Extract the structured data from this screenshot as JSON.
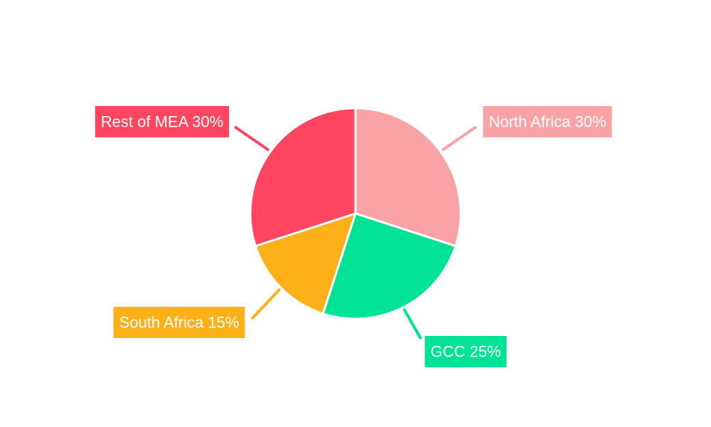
{
  "chart_data": {
    "type": "pie",
    "title": "",
    "slices": [
      {
        "label": "North Africa",
        "value": 30,
        "display": "North Africa 30%",
        "color": "#F9A3A6"
      },
      {
        "label": "GCC",
        "value": 25,
        "display": "GCC 25%",
        "color": "#00E396"
      },
      {
        "label": "South Africa",
        "value": 15,
        "display": "South Africa 15%",
        "color": "#FEB019"
      },
      {
        "label": "Rest of MEA",
        "value": 30,
        "display": "Rest of MEA 30%",
        "color": "#FF4560"
      }
    ],
    "legend": "none",
    "start_angle": "12 o'clock",
    "direction": "clockwise"
  }
}
